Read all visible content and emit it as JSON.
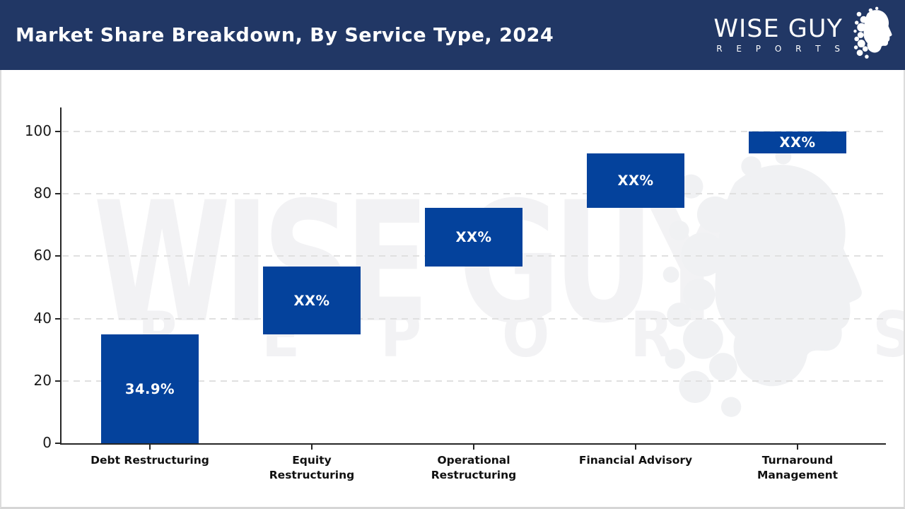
{
  "header": {
    "title": "Market Share Breakdown, By Service Type, 2024",
    "bg_color": "#213765",
    "logo": {
      "line1": "WISE GUY",
      "line2": "R E P O R T S"
    }
  },
  "watermark": {
    "line1": "WISE GUY",
    "line2": "R E P O R T S"
  },
  "chart_data": {
    "type": "bar",
    "subtype": "waterfall",
    "title": "Market Share Breakdown, By Service Type, 2024",
    "categories": [
      "Debt Restructuring",
      "Equity Restructuring",
      "Operational Restructuring",
      "Financial Advisory",
      "Turnaround Management"
    ],
    "tick_labels": [
      "Debt Restructuring",
      "Equity\nRestructuring",
      "Operational\nRestructuring",
      "Financial Advisory",
      "Turnaround\nManagement"
    ],
    "segments": [
      {
        "category": "Debt Restructuring",
        "start": 0,
        "end": 34.9,
        "label": "34.9%"
      },
      {
        "category": "Equity Restructuring",
        "start": 34.9,
        "end": 56.6,
        "label": "XX%"
      },
      {
        "category": "Operational Restructuring",
        "start": 56.6,
        "end": 75.5,
        "label": "XX%"
      },
      {
        "category": "Financial Advisory",
        "start": 75.5,
        "end": 93,
        "label": "XX%"
      },
      {
        "category": "Turnaround Management",
        "start": 93,
        "end": 100,
        "label": "XX%"
      }
    ],
    "ylim": [
      0,
      100
    ],
    "yticks": [
      0,
      20,
      40,
      60,
      80,
      100
    ],
    "xlabel": "",
    "ylabel": "",
    "grid": "horizontal-dashed",
    "legend": "none",
    "bar_color": "#04429c",
    "bar_label_color": "#ffffff",
    "axis_color": "#262626",
    "gridline_color": "#e0e0e0"
  }
}
